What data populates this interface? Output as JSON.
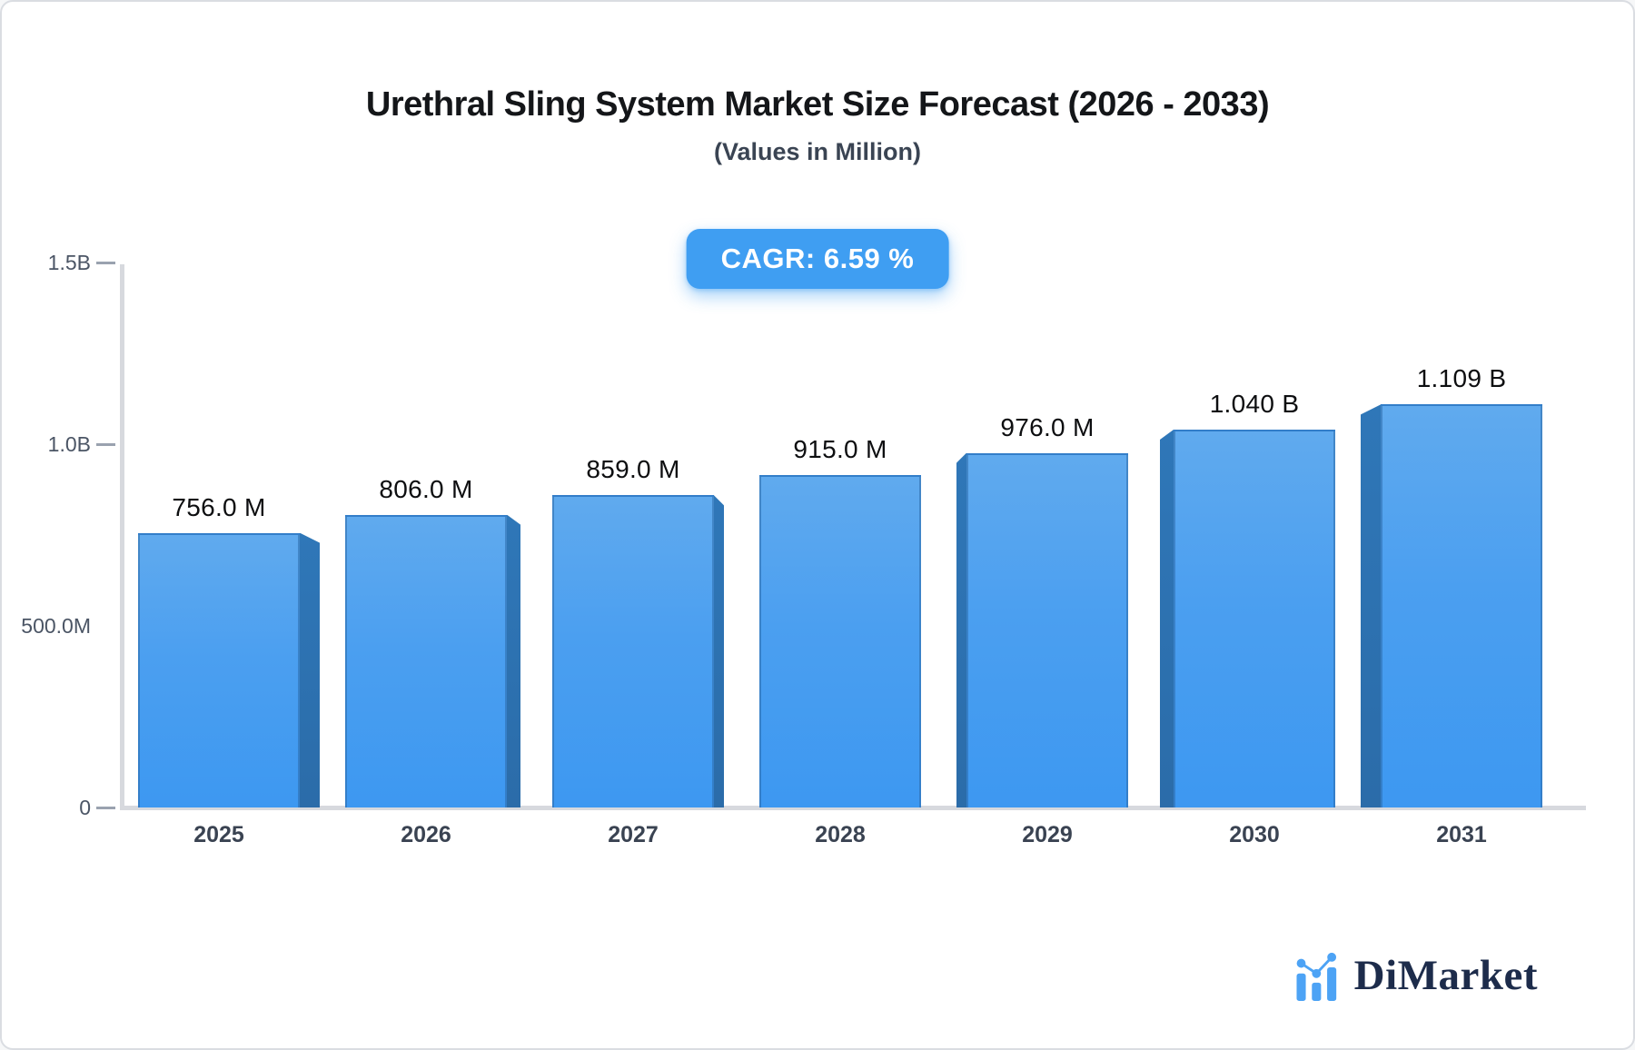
{
  "header": {
    "title": "Urethral Sling System Market Size Forecast (2026 - 2033)",
    "subtitle": "(Values in Million)",
    "cagr_badge": "CAGR: 6.59 %"
  },
  "chart_data": {
    "type": "bar",
    "categories": [
      "2025",
      "2026",
      "2027",
      "2028",
      "2029",
      "2030",
      "2031"
    ],
    "values_millions": [
      756,
      806,
      859,
      915,
      976,
      1040,
      1109
    ],
    "value_labels": [
      "756.0 M",
      "806.0 M",
      "859.0 M",
      "915.0 M",
      "976.0 M",
      "1.040 B",
      "1.109 B"
    ],
    "title": "Urethral Sling System Market Size Forecast (2026 - 2033)",
    "xlabel": "",
    "ylabel": "",
    "ylim_millions": [
      0,
      1500
    ],
    "grid": false,
    "legend": null,
    "y_axis_ticks": [
      {
        "label": "1.5B",
        "value_millions": 1500,
        "dash": true
      },
      {
        "label": "1.0B",
        "value_millions": 1000,
        "dash": true
      },
      {
        "label": "500.0M",
        "value_millions": 500,
        "dash": false
      },
      {
        "label": "0",
        "value_millions": 0,
        "dash": true
      }
    ],
    "bar_color_top": "#60aaee",
    "bar_color_bottom": "#3d98f1",
    "bar_side_color": "#2e74b5",
    "style": "3d-perspective-bars"
  },
  "colors": {
    "badge_background": "#3f9ef2",
    "badge_text": "#ffffff",
    "axis_line": "#d7d9de",
    "tick_text": "#4b5565",
    "category_text": "#3a4352",
    "title_text": "#141619",
    "brand_navy": "#1d2c4b",
    "brand_blue": "#4da3f5"
  },
  "branding": {
    "name": "DiMarket"
  }
}
